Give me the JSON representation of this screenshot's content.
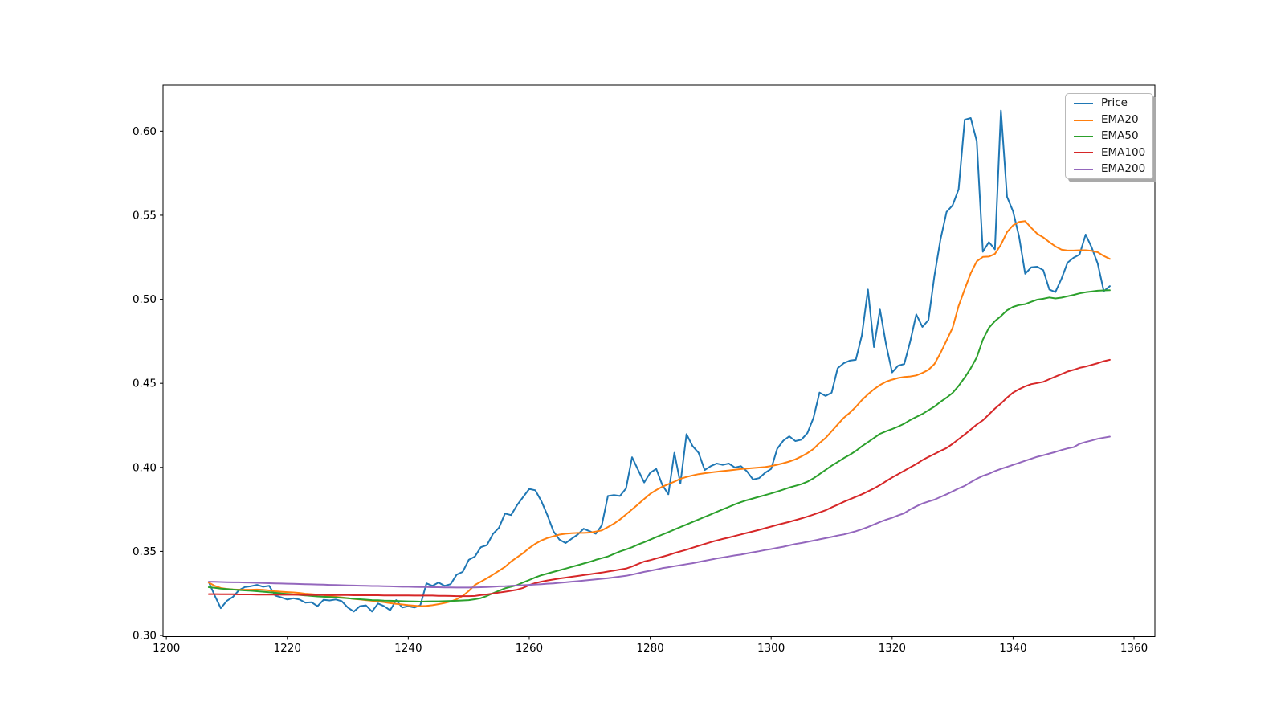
{
  "figure": {
    "background": "#ffffff",
    "axes": {
      "xlim": [
        1199.45,
        1363.45
      ],
      "ylim": [
        0.2993,
        0.6274
      ],
      "xticks": [
        1200,
        1220,
        1240,
        1260,
        1280,
        1300,
        1320,
        1340,
        1360
      ],
      "xtick_labels": [
        "1200",
        "1220",
        "1240",
        "1260",
        "1280",
        "1300",
        "1320",
        "1340",
        "1360"
      ],
      "yticks": [
        0.3,
        0.35,
        0.4,
        0.45,
        0.5,
        0.55,
        0.6
      ],
      "ytick_labels": [
        "0.30",
        "0.35",
        "0.40",
        "0.45",
        "0.50",
        "0.55",
        "0.60"
      ],
      "grid": false,
      "spine_color": "#000000",
      "tick_color": "#000000"
    },
    "legend": {
      "position": "upper-right",
      "shadow": true,
      "border_color": "#b9b9b9",
      "entries": [
        "Price",
        "EMA20",
        "EMA50",
        "EMA100",
        "EMA200"
      ]
    }
  },
  "chart_data": {
    "type": "line",
    "title": "",
    "xlabel": "",
    "ylabel": "",
    "x_start": 1207,
    "x_step": 1,
    "n_points": 150,
    "series": [
      {
        "name": "Price",
        "color": "#1f77b4",
        "values": [
          0.3318,
          0.3237,
          0.3162,
          0.3205,
          0.3229,
          0.3269,
          0.3288,
          0.3293,
          0.3301,
          0.329,
          0.3295,
          0.3237,
          0.3226,
          0.3214,
          0.3221,
          0.3214,
          0.3195,
          0.3197,
          0.3174,
          0.3212,
          0.3208,
          0.3214,
          0.3204,
          0.3166,
          0.3142,
          0.3174,
          0.3179,
          0.3142,
          0.319,
          0.3174,
          0.315,
          0.321,
          0.3166,
          0.3174,
          0.3166,
          0.318,
          0.331,
          0.3295,
          0.3315,
          0.3295,
          0.3305,
          0.3362,
          0.3378,
          0.345,
          0.3469,
          0.3525,
          0.3538,
          0.3604,
          0.3641,
          0.3725,
          0.3716,
          0.3776,
          0.3824,
          0.3872,
          0.3864,
          0.38,
          0.3715,
          0.362,
          0.357,
          0.355,
          0.3575,
          0.36,
          0.3635,
          0.362,
          0.3605,
          0.3655,
          0.383,
          0.3835,
          0.383,
          0.3875,
          0.406,
          0.3985,
          0.391,
          0.3968,
          0.3991,
          0.3896,
          0.384,
          0.4087,
          0.3904,
          0.4198,
          0.4127,
          0.4087,
          0.3984,
          0.4007,
          0.4023,
          0.4015,
          0.4023,
          0.3999,
          0.4007,
          0.3976,
          0.3928,
          0.3936,
          0.3968,
          0.3991,
          0.4111,
          0.4159,
          0.4185,
          0.4157,
          0.4165,
          0.4205,
          0.4295,
          0.4445,
          0.4425,
          0.4445,
          0.459,
          0.462,
          0.4635,
          0.464,
          0.4785,
          0.5058,
          0.4716,
          0.4939,
          0.473,
          0.4565,
          0.4605,
          0.4615,
          0.475,
          0.491,
          0.4836,
          0.4876,
          0.514,
          0.5355,
          0.552,
          0.5559,
          0.5655,
          0.6068,
          0.6078,
          0.594,
          0.5283,
          0.534,
          0.5297,
          0.6123,
          0.561,
          0.5523,
          0.5373,
          0.5152,
          0.519,
          0.5194,
          0.5173,
          0.5058,
          0.5043,
          0.5122,
          0.5218,
          0.5247,
          0.5266,
          0.5385,
          0.5308,
          0.5213,
          0.5048,
          0.5078
        ]
      },
      {
        "name": "EMA20",
        "color": "#ff7f0e",
        "values": [
          0.3314,
          0.3295,
          0.3282,
          0.3277,
          0.3274,
          0.3272,
          0.3272,
          0.3272,
          0.3273,
          0.3271,
          0.3268,
          0.3263,
          0.326,
          0.3258,
          0.3256,
          0.3253,
          0.3248,
          0.3246,
          0.3243,
          0.324,
          0.3234,
          0.323,
          0.3226,
          0.3222,
          0.3217,
          0.3214,
          0.321,
          0.3206,
          0.3202,
          0.3198,
          0.3192,
          0.3188,
          0.3184,
          0.318,
          0.3177,
          0.3174,
          0.3176,
          0.318,
          0.3186,
          0.3193,
          0.3202,
          0.3215,
          0.3235,
          0.3265,
          0.33,
          0.332,
          0.334,
          0.3362,
          0.3385,
          0.3408,
          0.344,
          0.3465,
          0.349,
          0.352,
          0.3545,
          0.3565,
          0.358,
          0.359,
          0.36,
          0.3605,
          0.3608,
          0.361,
          0.361,
          0.3612,
          0.3618,
          0.3625,
          0.3645,
          0.3665,
          0.369,
          0.372,
          0.375,
          0.378,
          0.3812,
          0.3843,
          0.3865,
          0.3885,
          0.39,
          0.3915,
          0.3932,
          0.3943,
          0.3952,
          0.396,
          0.3965,
          0.397,
          0.3974,
          0.3978,
          0.3982,
          0.3986,
          0.399,
          0.3993,
          0.3996,
          0.3999,
          0.4002,
          0.4008,
          0.4016,
          0.4025,
          0.4035,
          0.4048,
          0.4065,
          0.4085,
          0.411,
          0.4145,
          0.4175,
          0.4215,
          0.4255,
          0.4295,
          0.4325,
          0.436,
          0.44,
          0.4435,
          0.4465,
          0.449,
          0.451,
          0.4522,
          0.4532,
          0.4538,
          0.4541,
          0.4547,
          0.4562,
          0.458,
          0.4615,
          0.468,
          0.4755,
          0.483,
          0.496,
          0.506,
          0.5155,
          0.5226,
          0.5252,
          0.5254,
          0.527,
          0.5325,
          0.54,
          0.544,
          0.546,
          0.5465,
          0.5425,
          0.539,
          0.5368,
          0.534,
          0.5315,
          0.5295,
          0.529,
          0.529,
          0.5292,
          0.5292,
          0.5288,
          0.528,
          0.5258,
          0.524
        ]
      },
      {
        "name": "EMA50",
        "color": "#2ca02c",
        "values": [
          0.3287,
          0.3283,
          0.3279,
          0.3276,
          0.3273,
          0.327,
          0.3268,
          0.3266,
          0.3263,
          0.326,
          0.3257,
          0.3254,
          0.325,
          0.3247,
          0.3244,
          0.3241,
          0.3238,
          0.3235,
          0.3232,
          0.323,
          0.3228,
          0.3226,
          0.3224,
          0.3221,
          0.3218,
          0.3215,
          0.3213,
          0.321,
          0.3209,
          0.3207,
          0.3206,
          0.3205,
          0.3204,
          0.3203,
          0.3202,
          0.3201,
          0.3202,
          0.3203,
          0.3203,
          0.3204,
          0.3205,
          0.3206,
          0.3208,
          0.321,
          0.3215,
          0.3222,
          0.3235,
          0.3251,
          0.3266,
          0.328,
          0.329,
          0.33,
          0.3315,
          0.333,
          0.3345,
          0.3358,
          0.3368,
          0.3378,
          0.3388,
          0.3398,
          0.3408,
          0.3418,
          0.3428,
          0.3438,
          0.345,
          0.346,
          0.347,
          0.3485,
          0.35,
          0.3512,
          0.3525,
          0.3541,
          0.3555,
          0.357,
          0.3585,
          0.36,
          0.3615,
          0.363,
          0.3645,
          0.366,
          0.3675,
          0.369,
          0.3705,
          0.372,
          0.3735,
          0.375,
          0.3765,
          0.378,
          0.3793,
          0.3805,
          0.3815,
          0.3825,
          0.3835,
          0.3845,
          0.3856,
          0.3868,
          0.388,
          0.389,
          0.39,
          0.3915,
          0.3935,
          0.396,
          0.3985,
          0.401,
          0.4032,
          0.4055,
          0.4075,
          0.4098,
          0.4125,
          0.415,
          0.4175,
          0.42,
          0.4215,
          0.4228,
          0.4243,
          0.426,
          0.4282,
          0.43,
          0.4318,
          0.434,
          0.4362,
          0.439,
          0.4415,
          0.4443,
          0.4485,
          0.4535,
          0.459,
          0.4655,
          0.476,
          0.483,
          0.487,
          0.49,
          0.4935,
          0.4955,
          0.4966,
          0.4971,
          0.4985,
          0.4998,
          0.5003,
          0.5011,
          0.5005,
          0.501,
          0.5018,
          0.5026,
          0.5035,
          0.5042,
          0.5046,
          0.5051,
          0.5053,
          0.5054
        ]
      },
      {
        "name": "EMA100",
        "color": "#d62728",
        "values": [
          0.3246,
          0.3246,
          0.3245,
          0.3245,
          0.3245,
          0.3244,
          0.3244,
          0.3244,
          0.3243,
          0.3243,
          0.3243,
          0.3243,
          0.3242,
          0.3242,
          0.3242,
          0.3242,
          0.3241,
          0.3241,
          0.3241,
          0.3241,
          0.324,
          0.324,
          0.324,
          0.324,
          0.3239,
          0.3239,
          0.3239,
          0.3239,
          0.3239,
          0.3238,
          0.3238,
          0.3238,
          0.3238,
          0.3238,
          0.3237,
          0.3237,
          0.3237,
          0.3237,
          0.3236,
          0.3236,
          0.3235,
          0.3234,
          0.3234,
          0.3234,
          0.3235,
          0.324,
          0.3244,
          0.3249,
          0.3255,
          0.326,
          0.3266,
          0.3272,
          0.3283,
          0.33,
          0.3312,
          0.332,
          0.3327,
          0.3333,
          0.3339,
          0.3344,
          0.3349,
          0.3354,
          0.3359,
          0.3364,
          0.3369,
          0.3374,
          0.338,
          0.3386,
          0.3392,
          0.3398,
          0.341,
          0.3425,
          0.344,
          0.3448,
          0.3458,
          0.3468,
          0.3478,
          0.349,
          0.35,
          0.351,
          0.3522,
          0.3533,
          0.3544,
          0.3555,
          0.3565,
          0.3574,
          0.3583,
          0.3592,
          0.3601,
          0.361,
          0.3619,
          0.3628,
          0.3638,
          0.3648,
          0.3658,
          0.3667,
          0.3676,
          0.3686,
          0.3696,
          0.3707,
          0.3719,
          0.3732,
          0.3745,
          0.3762,
          0.3778,
          0.3795,
          0.381,
          0.3825,
          0.384,
          0.3857,
          0.3875,
          0.3895,
          0.3918,
          0.394,
          0.396,
          0.398,
          0.4,
          0.402,
          0.4043,
          0.4062,
          0.408,
          0.4098,
          0.4115,
          0.414,
          0.4168,
          0.4196,
          0.4225,
          0.4255,
          0.428,
          0.4315,
          0.435,
          0.438,
          0.4415,
          0.4445,
          0.4465,
          0.4482,
          0.4495,
          0.4502,
          0.4509,
          0.4525,
          0.454,
          0.4555,
          0.457,
          0.458,
          0.4592,
          0.46,
          0.461,
          0.462,
          0.4632,
          0.464
        ]
      },
      {
        "name": "EMA200",
        "color": "#9467bd",
        "values": [
          0.332,
          0.3319,
          0.3318,
          0.3317,
          0.3316,
          0.3316,
          0.3315,
          0.3314,
          0.3313,
          0.3312,
          0.3311,
          0.331,
          0.3309,
          0.3308,
          0.3307,
          0.3306,
          0.3305,
          0.3304,
          0.3303,
          0.3302,
          0.3301,
          0.33,
          0.3299,
          0.3298,
          0.3297,
          0.3296,
          0.3295,
          0.3294,
          0.3294,
          0.3293,
          0.3292,
          0.3291,
          0.329,
          0.329,
          0.3289,
          0.3288,
          0.3288,
          0.3287,
          0.3287,
          0.3286,
          0.3286,
          0.3285,
          0.3285,
          0.3285,
          0.3286,
          0.3287,
          0.3288,
          0.329,
          0.3292,
          0.3293,
          0.3295,
          0.3297,
          0.3299,
          0.3301,
          0.3303,
          0.3305,
          0.3308,
          0.331,
          0.3313,
          0.3316,
          0.332,
          0.3323,
          0.3326,
          0.333,
          0.3334,
          0.3337,
          0.3341,
          0.3345,
          0.335,
          0.3355,
          0.3362,
          0.337,
          0.3378,
          0.3385,
          0.3392,
          0.34,
          0.3406,
          0.3412,
          0.3418,
          0.3424,
          0.343,
          0.3437,
          0.3444,
          0.3451,
          0.3458,
          0.3464,
          0.347,
          0.3476,
          0.3481,
          0.3488,
          0.3495,
          0.3501,
          0.3508,
          0.3514,
          0.3521,
          0.3528,
          0.3536,
          0.3544,
          0.355,
          0.3557,
          0.3564,
          0.3572,
          0.3579,
          0.3586,
          0.3594,
          0.3601,
          0.361,
          0.362,
          0.3632,
          0.3645,
          0.366,
          0.3675,
          0.3689,
          0.37,
          0.3714,
          0.3727,
          0.375,
          0.3768,
          0.3785,
          0.3797,
          0.3808,
          0.3824,
          0.384,
          0.3857,
          0.3875,
          0.389,
          0.3912,
          0.3932,
          0.395,
          0.3962,
          0.3978,
          0.3991,
          0.4003,
          0.4015,
          0.4027,
          0.4039,
          0.4051,
          0.4063,
          0.4072,
          0.4082,
          0.4092,
          0.4103,
          0.4113,
          0.412,
          0.414,
          0.4151,
          0.416,
          0.417,
          0.4177,
          0.4183
        ]
      }
    ]
  }
}
